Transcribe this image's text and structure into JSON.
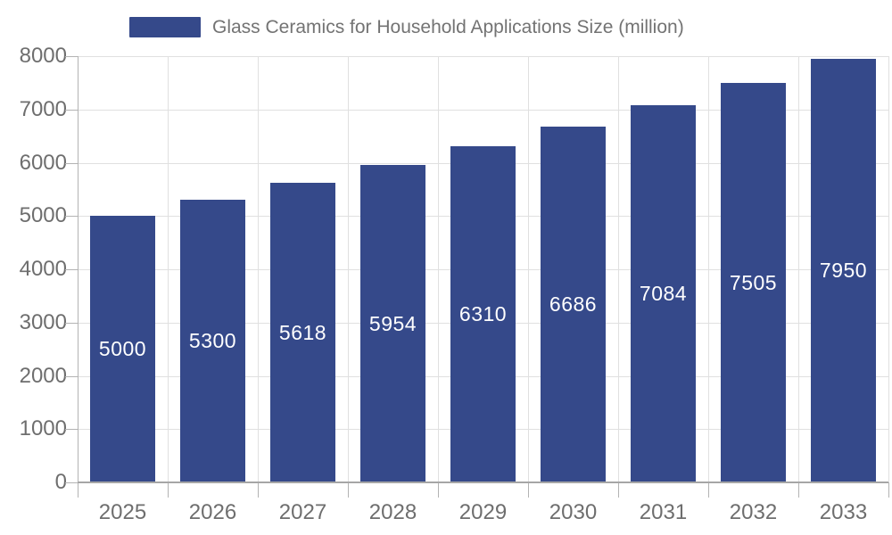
{
  "chart_data": {
    "type": "bar",
    "title": "Glass Ceramics for Household Applications Size (million)",
    "categories": [
      "2025",
      "2026",
      "2027",
      "2028",
      "2029",
      "2030",
      "2031",
      "2032",
      "2033"
    ],
    "series": [
      {
        "name": "Glass Ceramics for Household Applications Size (million)",
        "values": [
          5000,
          5300,
          5618,
          5954,
          6310,
          6686,
          7084,
          7505,
          7950
        ]
      }
    ],
    "xlabel": "",
    "ylabel": "",
    "ylim": [
      0,
      8000
    ],
    "yticks": [
      0,
      1000,
      2000,
      3000,
      4000,
      5000,
      6000,
      7000,
      8000
    ],
    "grid": "horizontal and vertical gridlines on",
    "legend_position": "top-center",
    "value_labels": "centered inside bars, white"
  },
  "legend": {
    "label": "Glass Ceramics for Household Applications Size (million)"
  },
  "colors": {
    "bar": "#35498a",
    "bar_label": "#ffffff",
    "axis_text": "#6e6e6e",
    "legend_text": "#737373",
    "gridline": "#e0e0e0",
    "axis_line": "#b3b3b3",
    "axis_line_bottom": "#a6a6a6",
    "background": "#ffffff"
  }
}
